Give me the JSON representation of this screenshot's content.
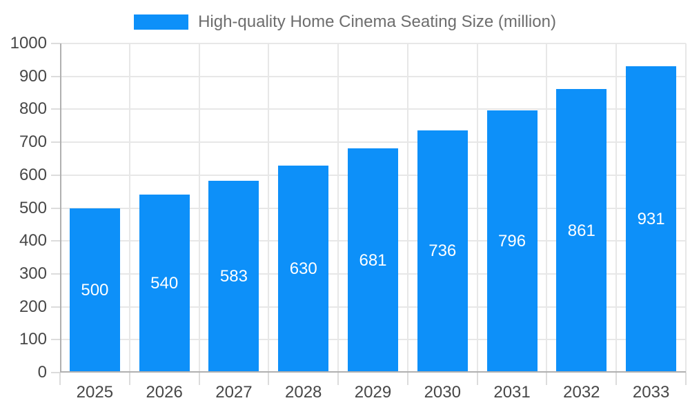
{
  "chart_data": {
    "type": "bar",
    "title": "High-quality Home Cinema Seating Size (million)",
    "categories": [
      "2025",
      "2026",
      "2027",
      "2028",
      "2029",
      "2030",
      "2031",
      "2032",
      "2033"
    ],
    "values": [
      500,
      540,
      583,
      630,
      681,
      736,
      796,
      861,
      931
    ],
    "xlabel": "",
    "ylabel": "",
    "ylim": [
      0,
      1000
    ],
    "ytick_step": 100,
    "yticks": [
      0,
      100,
      200,
      300,
      400,
      500,
      600,
      700,
      800,
      900,
      1000
    ],
    "grid": true,
    "legend_position": "top-center",
    "bar_labels_visible": true,
    "colors": {
      "bar": "#0d90f9",
      "bar_label": "#ffffff",
      "axis_text": "#474747",
      "legend_text": "#6d6d6d",
      "gridline": "#e7e7e7",
      "tick": "#dcdcdc",
      "axis_line": "#b0b0b0",
      "background": "#ffffff"
    }
  }
}
